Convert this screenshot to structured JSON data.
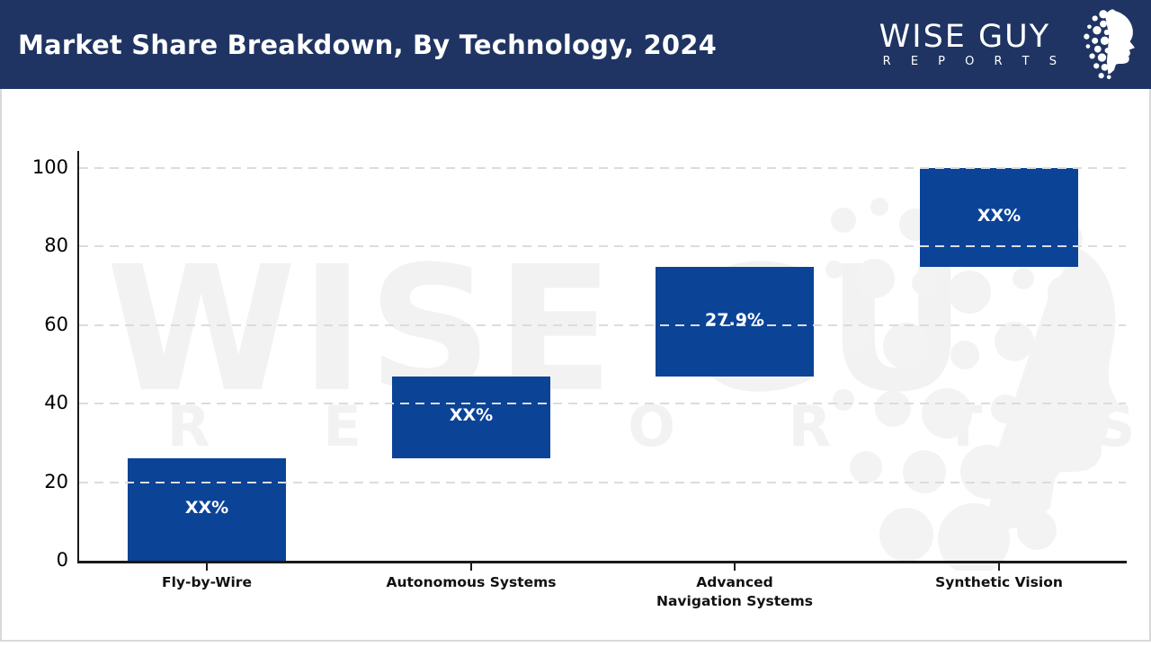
{
  "header": {
    "title": "Market Share Breakdown, By Technology, 2024",
    "logo_line1": "WISE GUY",
    "logo_line2": "R E P O R T S",
    "bg_color": "#1F3462"
  },
  "watermark": {
    "line1": "WISE GU",
    "line2": "R E P O R T S"
  },
  "chart_data": {
    "type": "bar",
    "subtype": "waterfall",
    "title": "Market Share Breakdown, By Technology, 2024",
    "categories": [
      "Fly-by-Wire",
      "Autonomous Systems",
      "Advanced\nNavigation Systems",
      "Synthetic Vision"
    ],
    "segments": [
      {
        "category": "Fly-by-Wire",
        "start": 0,
        "end": 26,
        "label": "XX%"
      },
      {
        "category": "Autonomous Systems",
        "start": 26,
        "end": 47,
        "label": "XX%"
      },
      {
        "category": "Advanced Navigation Systems",
        "start": 47,
        "end": 74.9,
        "label": "27.9%"
      },
      {
        "category": "Synthetic Vision",
        "start": 74.9,
        "end": 100,
        "label": "XX%"
      }
    ],
    "yticks": [
      0,
      20,
      40,
      60,
      80,
      100
    ],
    "ylim": [
      0,
      104
    ],
    "xlabel": "",
    "ylabel": "",
    "legend": null,
    "grid": "horizontal-dashed",
    "colors": {
      "bar": "#0B4397",
      "bar_label": "#FFFFFF",
      "grid_line": "#DCDCDC",
      "axis": "#1A1A1A",
      "tick_label": "#000000"
    }
  }
}
